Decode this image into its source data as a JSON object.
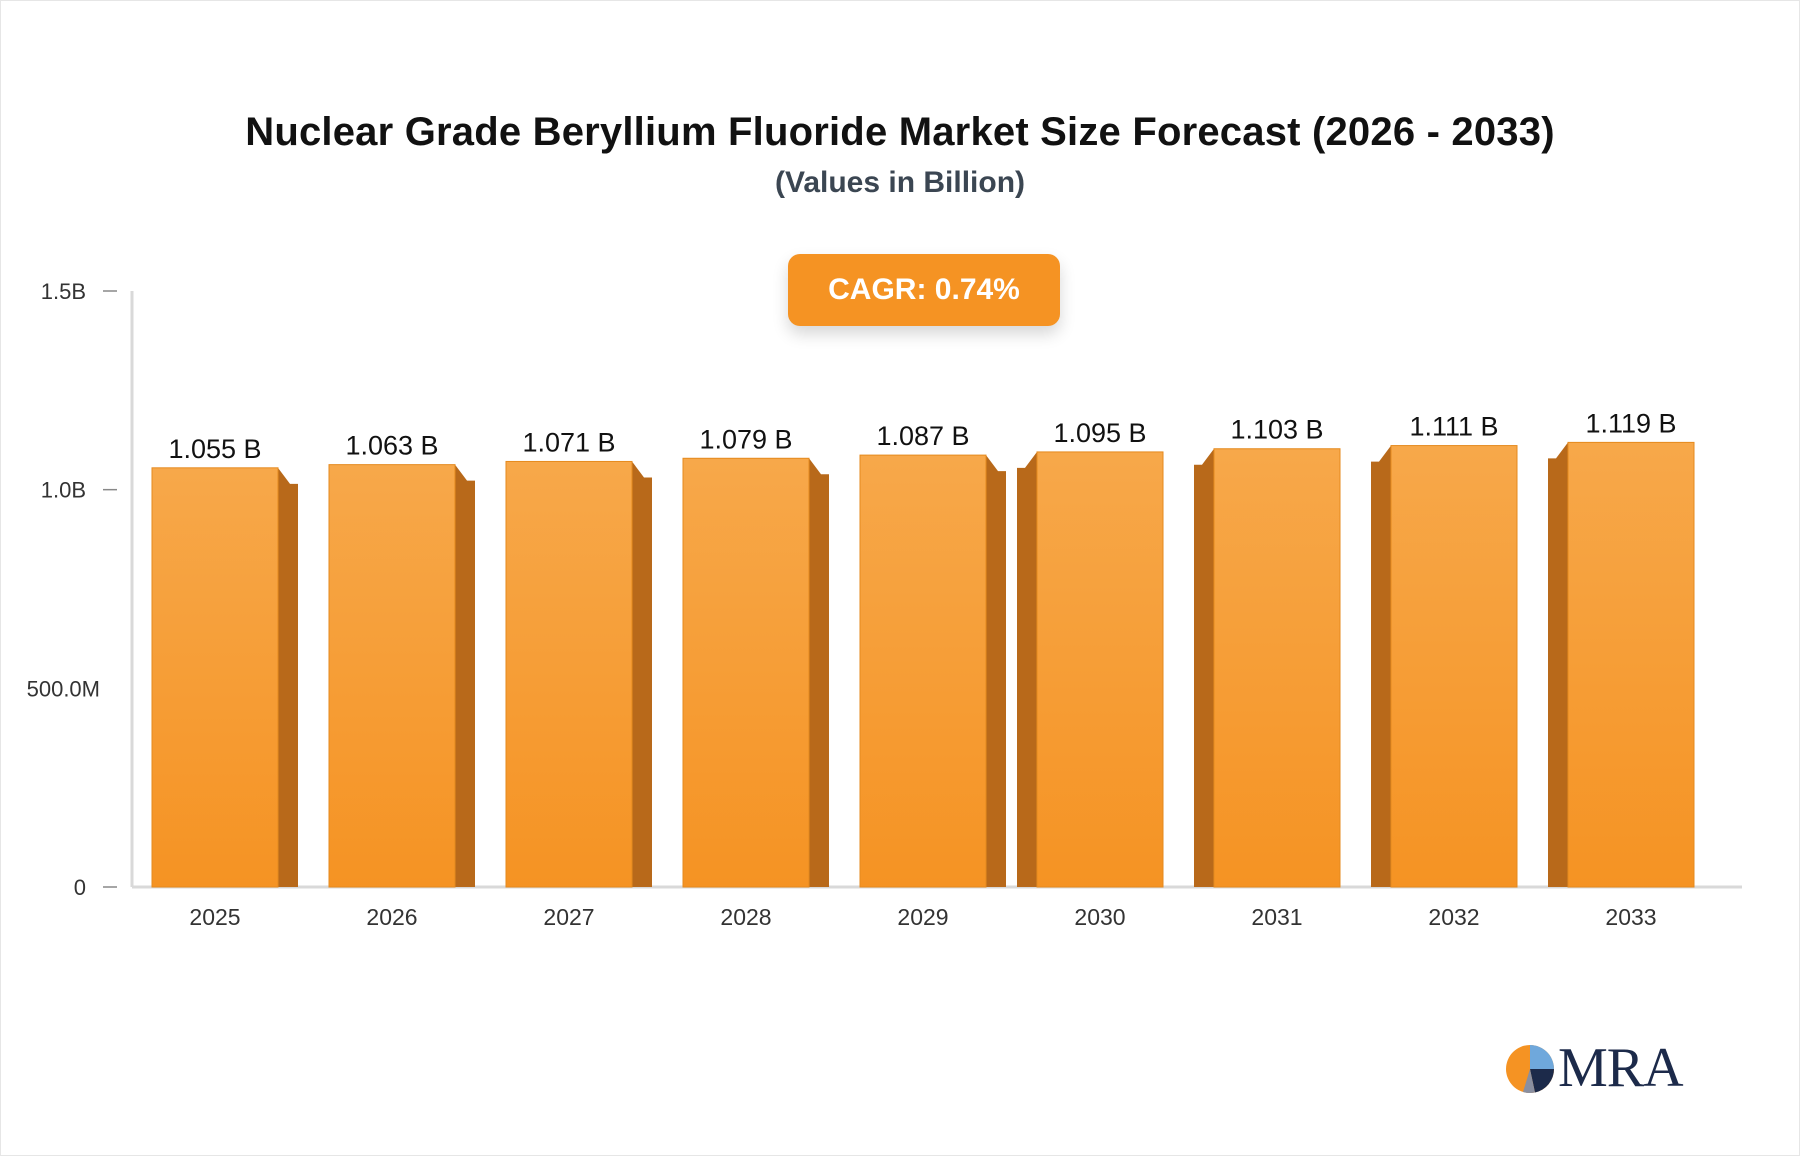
{
  "chart_data": {
    "type": "bar",
    "title": "Nuclear Grade Beryllium Fluoride Market Size Forecast (2026 - 2033)",
    "subtitle": "(Values in Billion)",
    "categories": [
      "2025",
      "2026",
      "2027",
      "2028",
      "2029",
      "2030",
      "2031",
      "2032",
      "2033"
    ],
    "values": [
      1.055,
      1.063,
      1.071,
      1.079,
      1.087,
      1.095,
      1.103,
      1.111,
      1.119
    ],
    "value_labels": [
      "1.055 B",
      "1.063 B",
      "1.071 B",
      "1.079 B",
      "1.087 B",
      "1.095 B",
      "1.103 B",
      "1.111 B",
      "1.119 B"
    ],
    "y_ticks": [
      {
        "value": 0,
        "label": "0"
      },
      {
        "value": 0.5,
        "label": "500.0M"
      },
      {
        "value": 1.0,
        "label": "1.0B"
      },
      {
        "value": 1.5,
        "label": "1.5B"
      }
    ],
    "ylim": [
      0,
      1.5
    ],
    "xlabel": "",
    "ylabel": "",
    "grid": false,
    "bar_color": "#f59323",
    "bar_side_color": "#b8691a"
  },
  "badge": {
    "cagr_label": "CAGR: 0.74%"
  },
  "logo": {
    "text": "MRA",
    "colors": [
      "#f59323",
      "#1c2a4a",
      "#6fa8dc"
    ]
  }
}
